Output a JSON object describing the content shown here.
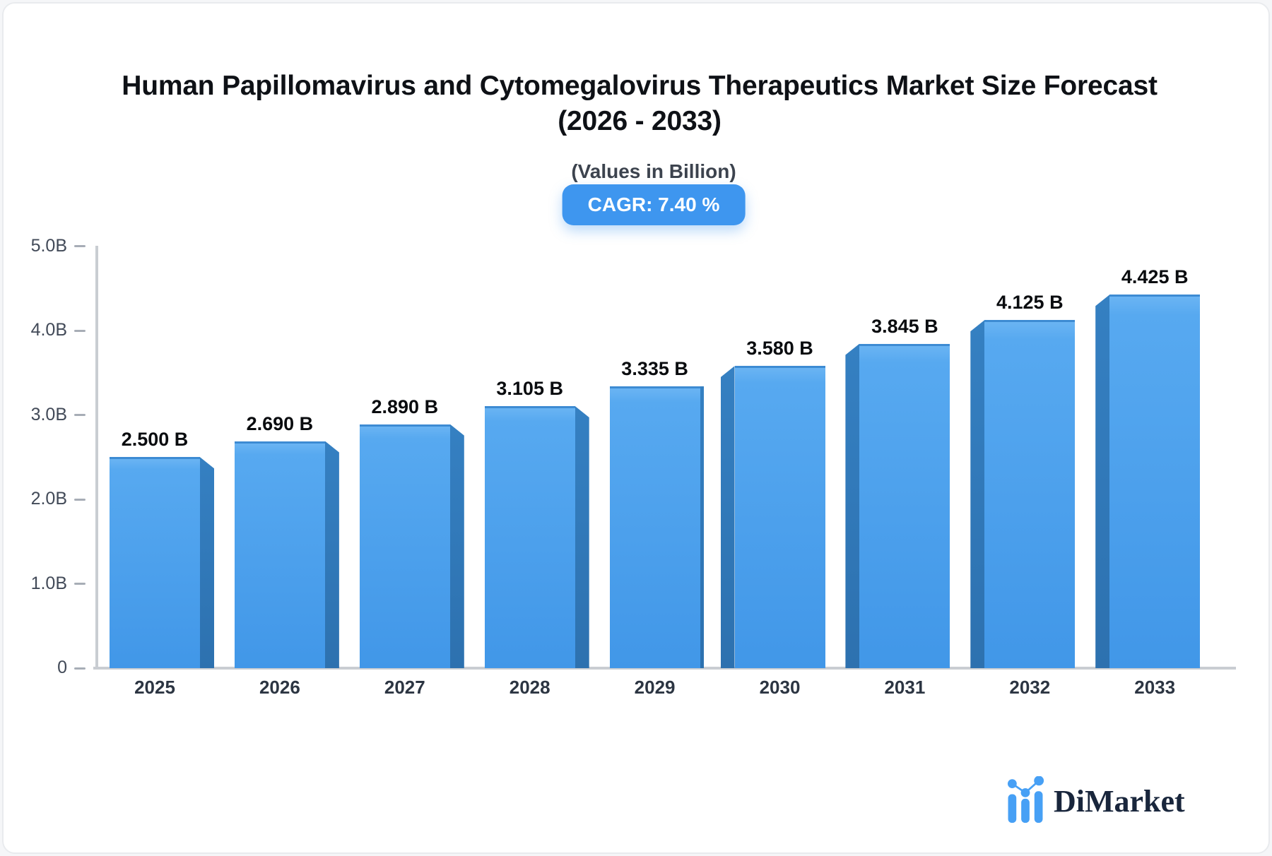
{
  "header": {
    "title_line1": "Human Papillomavirus and Cytomegalovirus Therapeutics Market Size Forecast",
    "title_line2": "(2026 - 2033)",
    "subtitle": "(Values in Billion)",
    "cagr_label": "CAGR: 7.40 %"
  },
  "chart_data": {
    "type": "bar",
    "title": "Human Papillomavirus and Cytomegalovirus Therapeutics Market Size Forecast (2026 - 2033)",
    "subtitle": "(Values in Billion)",
    "cagr_percent": 7.4,
    "categories": [
      "2025",
      "2026",
      "2027",
      "2028",
      "2029",
      "2030",
      "2031",
      "2032",
      "2033"
    ],
    "values": [
      2.5,
      2.69,
      2.89,
      3.105,
      3.335,
      3.58,
      3.845,
      4.125,
      4.425
    ],
    "bar_labels": [
      "2.500 B",
      "2.690 B",
      "2.890 B",
      "3.105 B",
      "3.335 B",
      "3.580 B",
      "3.845 B",
      "4.125 B",
      "4.425 B"
    ],
    "y_ticks": [
      {
        "label": "5.0B",
        "value": 5.0
      },
      {
        "label": "4.0B",
        "value": 4.0
      },
      {
        "label": "3.0B",
        "value": 3.0
      },
      {
        "label": "2.0B",
        "value": 2.0
      },
      {
        "label": "1.0B",
        "value": 1.0
      },
      {
        "label": "0",
        "value": 0.0
      }
    ],
    "ylim": [
      0,
      5.0
    ],
    "grid": false,
    "legend": "none",
    "bar_color": "#4aa0ec",
    "bar_side_color": "#2e74b4"
  },
  "branding": {
    "logo_text": "DiMarket",
    "logo_icon": "bar-line-chart-icon",
    "logo_icon_color": "#47a0f5",
    "logo_text_color": "#19263c"
  },
  "colors": {
    "badge_background": "#3e96ef",
    "badge_text": "#ffffff",
    "axis_line": "#c9cdd2",
    "title_text": "#0e1116",
    "subtitle_text": "#3c434e"
  }
}
